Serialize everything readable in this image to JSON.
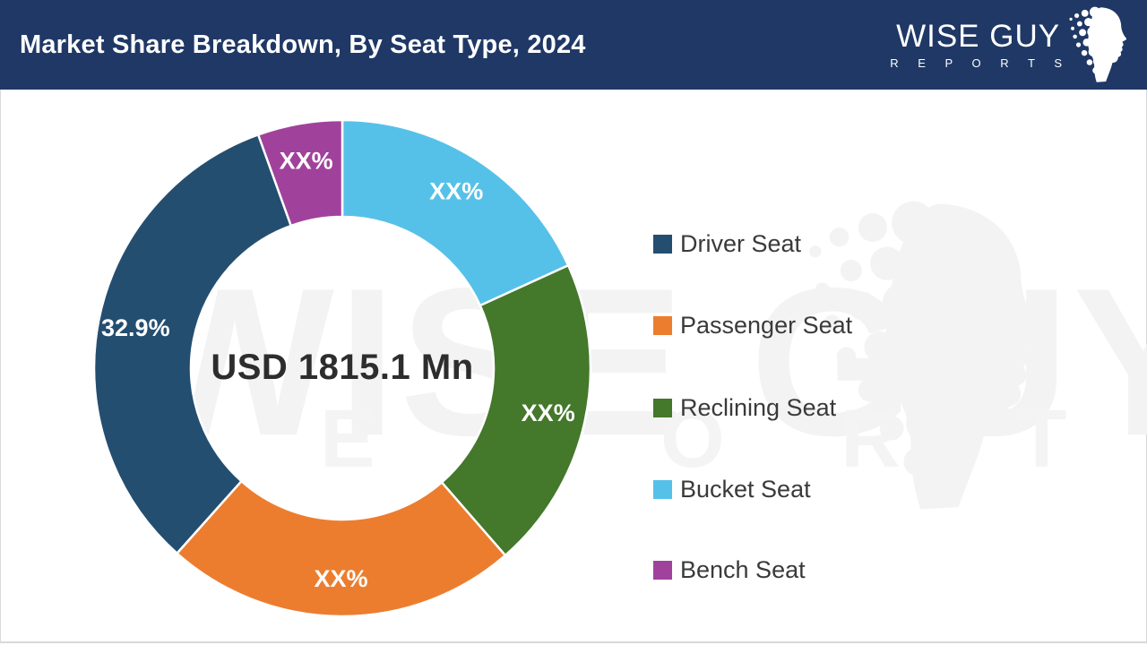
{
  "header": {
    "title": "Market Share Breakdown, By Seat Type, 2024",
    "bg_color": "#1F3866",
    "logo": {
      "line1": "WISE GUY",
      "line2": "R E P O R T S",
      "face_icon": "dotted-head-profile"
    }
  },
  "watermark": {
    "line1": "WISE GUY",
    "line2": "R E P O R T S",
    "face_icon": "dotted-head-profile",
    "color": "#F3F3F3"
  },
  "chart_data": {
    "type": "pie",
    "subtype": "donut",
    "title": "Market Share Breakdown, By Seat Type, 2024",
    "center_label": "USD 1815.1 Mn",
    "units": "percent market share",
    "start_angle_deg": 0,
    "direction": "clockwise",
    "inner_radius_ratio": 0.61,
    "legend_position": "right",
    "series": [
      {
        "name": "Driver Seat",
        "value": 32.9,
        "display_label": "32.9%",
        "color": "#244E70"
      },
      {
        "name": "Passenger Seat",
        "value": 23.0,
        "display_label": "XX%",
        "color": "#EC7D2F"
      },
      {
        "name": "Reclining Seat",
        "value": 20.4,
        "display_label": "XX%",
        "color": "#44782B"
      },
      {
        "name": "Bucket Seat",
        "value": 18.2,
        "display_label": "XX%",
        "color": "#56C1E8"
      },
      {
        "name": "Bench Seat",
        "value": 5.5,
        "display_label": "XX%",
        "color": "#A0429B"
      }
    ],
    "draw_order_clockwise_from_top": [
      "Bucket Seat",
      "Reclining Seat",
      "Passenger Seat",
      "Driver Seat",
      "Bench Seat"
    ],
    "label_text_color": "#FFFFFF",
    "slice_gap_color": "#FFFFFF"
  }
}
